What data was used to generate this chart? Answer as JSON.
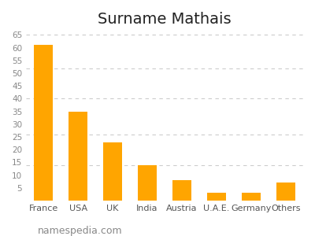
{
  "title": "Surname Mathais",
  "categories": [
    "France",
    "USA",
    "UK",
    "India",
    "Austria",
    "U.A.E.",
    "Germany",
    "Others"
  ],
  "values": [
    61,
    35,
    23,
    14,
    8,
    3,
    3,
    7
  ],
  "bar_color": "#FFA500",
  "ylim_max": 65,
  "yticks": [
    0,
    5,
    10,
    15,
    20,
    25,
    30,
    35,
    40,
    45,
    50,
    55,
    60,
    65
  ],
  "ytick_labels": [
    "",
    "5",
    "10",
    "15",
    "20",
    "25",
    "30",
    "35",
    "40",
    "45",
    "50",
    "55",
    "60",
    "65"
  ],
  "grid_lines": [
    14,
    26,
    40,
    52,
    65
  ],
  "grid_color": "#cccccc",
  "background_color": "#ffffff",
  "title_fontsize": 14,
  "tick_fontsize": 7.5,
  "xtick_fontsize": 8,
  "footer_text": "namespedia.com",
  "footer_fontsize": 9
}
